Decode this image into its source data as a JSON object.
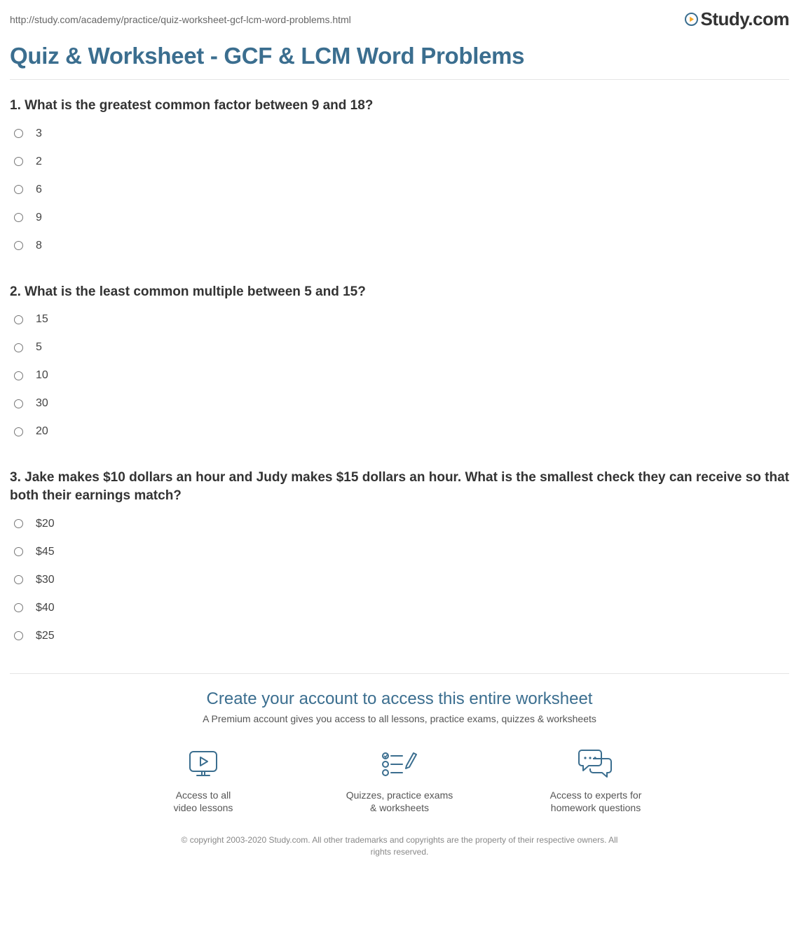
{
  "url": "http://study.com/academy/practice/quiz-worksheet-gcf-lcm-word-problems.html",
  "logo": {
    "text": "Study.com"
  },
  "page_title": "Quiz & Worksheet - GCF & LCM Word Problems",
  "colors": {
    "title": "#3b6e8f",
    "text": "#333333",
    "muted": "#666666",
    "icon": "#3b6e8f",
    "separator": "#e5e5e5"
  },
  "questions": [
    {
      "number": "1.",
      "text": "What is the greatest common factor between 9 and 18?",
      "options": [
        "3",
        "2",
        "6",
        "9",
        "8"
      ]
    },
    {
      "number": "2.",
      "text": "What is the least common multiple between 5 and 15?",
      "options": [
        "15",
        "5",
        "10",
        "30",
        "20"
      ]
    },
    {
      "number": "3.",
      "text": "Jake makes $10 dollars an hour and Judy makes $15 dollars an hour. What is the smallest check they can receive so that both their earnings match?",
      "options": [
        "$20",
        "$45",
        "$30",
        "$40",
        "$25"
      ]
    }
  ],
  "cta": {
    "title": "Create your account to access this entire worksheet",
    "subtitle": "A Premium account gives you access to all lessons, practice exams, quizzes & worksheets"
  },
  "features": [
    {
      "line1": "Access to all",
      "line2": "video lessons"
    },
    {
      "line1": "Quizzes, practice exams",
      "line2": "& worksheets"
    },
    {
      "line1": "Access to experts for",
      "line2": "homework questions"
    }
  ],
  "copyright": "© copyright 2003-2020 Study.com. All other trademarks and copyrights are the property of their respective owners. All rights reserved."
}
